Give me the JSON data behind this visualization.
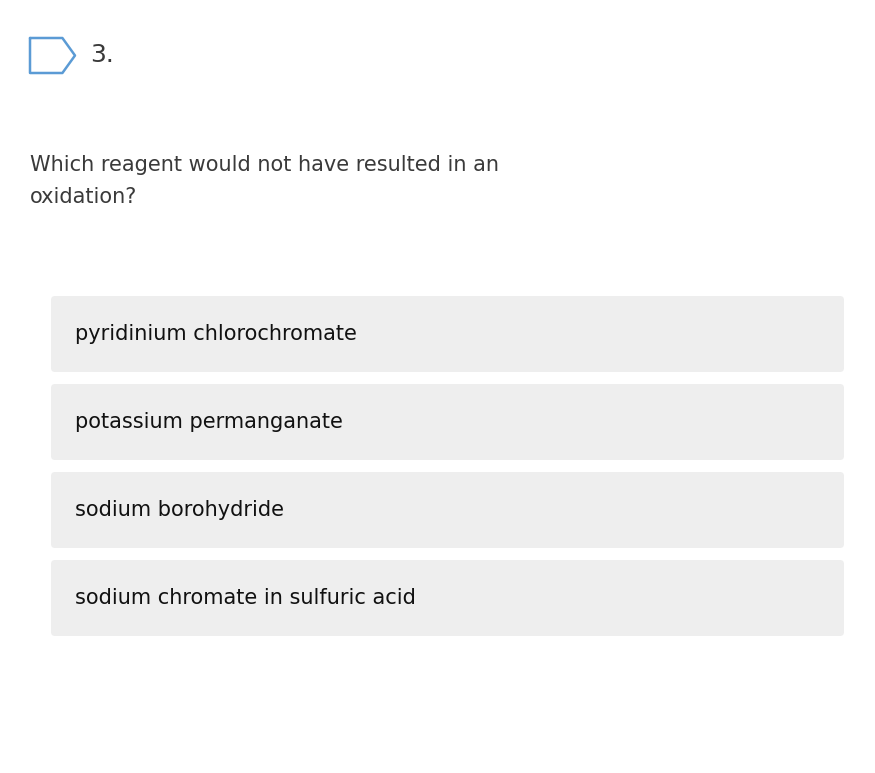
{
  "title_number": "3.",
  "question_line1": "Which reagent would not have resulted in an",
  "question_line2": "oxidation?",
  "options": [
    "pyridinium chlorochromate",
    "potassium permanganate",
    "sodium borohydride",
    "sodium chromate in sulfuric acid"
  ],
  "bg_color": "#ffffff",
  "option_bg_color": "#eeeeee",
  "question_color": "#3a3a3a",
  "option_text_color": "#111111",
  "number_color": "#3a3a3a",
  "arrow_color": "#5b9bd5",
  "option_font_size": 15,
  "question_font_size": 15,
  "number_font_size": 18,
  "fig_width": 8.75,
  "fig_height": 7.73
}
